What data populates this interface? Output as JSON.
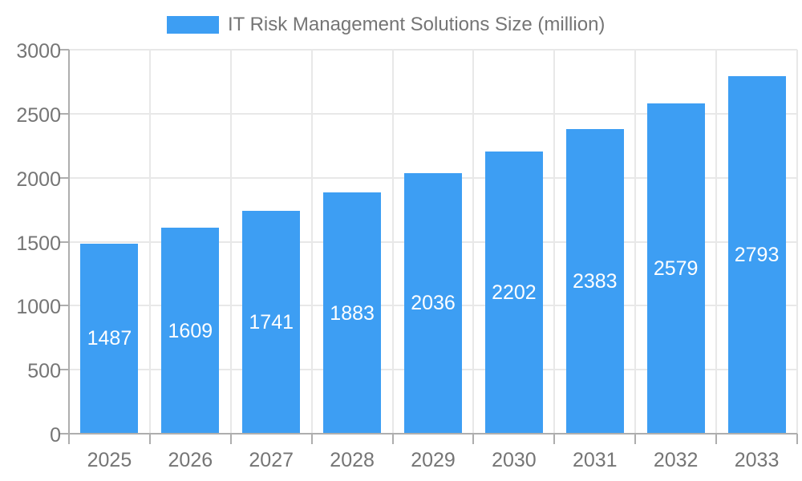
{
  "chart_data": {
    "type": "bar",
    "title": "IT Risk Management Solutions Size (million)",
    "categories": [
      "2025",
      "2026",
      "2027",
      "2028",
      "2029",
      "2030",
      "2031",
      "2032",
      "2033"
    ],
    "values": [
      1487,
      1609,
      1741,
      1883,
      2036,
      2202,
      2383,
      2579,
      2793
    ],
    "xlabel": "",
    "ylabel": "",
    "ylim": [
      0,
      3000
    ],
    "ytick_step": 500,
    "ytick_labels": [
      "0",
      "500",
      "1000",
      "1500",
      "2000",
      "2500",
      "3000"
    ],
    "grid": true,
    "legend_position": "top-center",
    "value_label_position": "inside-center",
    "colors": {
      "bar": "#3d9ef3",
      "grid": "#e8e8e8",
      "axis": "#aeaeae",
      "text": "#757575",
      "value_label": "#ffffff",
      "background": "#ffffff"
    }
  }
}
